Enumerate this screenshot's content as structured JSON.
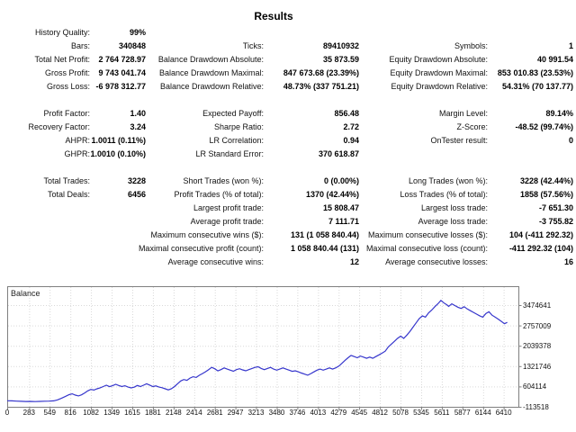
{
  "title": "Results",
  "colors": {
    "line": "#3636cc",
    "grid": "#d9d9d9",
    "plot_border": "#7f7f7f",
    "text": "#000000"
  },
  "stats_sections": [
    {
      "rows": [
        [
          "History Quality:",
          "99%",
          "",
          "",
          "",
          ""
        ],
        [
          "Bars:",
          "340848",
          "Ticks:",
          "89410932",
          "Symbols:",
          "1"
        ],
        [
          "Total Net Profit:",
          "2 764 728.97",
          "Balance Drawdown Absolute:",
          "35 873.59",
          "Equity Drawdown Absolute:",
          "40 991.54"
        ],
        [
          "Gross Profit:",
          "9 743 041.74",
          "Balance Drawdown Maximal:",
          "847 673.68 (23.39%)",
          "Equity Drawdown Maximal:",
          "853 010.83 (23.53%)"
        ],
        [
          "Gross Loss:",
          "-6 978 312.77",
          "Balance Drawdown Relative:",
          "48.73% (337 751.21)",
          "Equity Drawdown Relative:",
          "54.31% (70 137.77)"
        ]
      ]
    },
    {
      "rows": [
        [
          "Profit Factor:",
          "1.40",
          "Expected Payoff:",
          "856.48",
          "Margin Level:",
          "89.14%"
        ],
        [
          "Recovery Factor:",
          "3.24",
          "Sharpe Ratio:",
          "2.72",
          "Z-Score:",
          "-48.52 (99.74%)"
        ],
        [
          "AHPR:",
          "1.0011 (0.11%)",
          "LR Correlation:",
          "0.94",
          "OnTester result:",
          "0"
        ],
        [
          "GHPR:",
          "1.0010 (0.10%)",
          "LR Standard Error:",
          "370 618.87",
          "",
          ""
        ]
      ]
    },
    {
      "rows": [
        [
          "Total Trades:",
          "3228",
          "Short Trades (won %):",
          "0 (0.00%)",
          "Long Trades (won %):",
          "3228 (42.44%)"
        ],
        [
          "Total Deals:",
          "6456",
          "Profit Trades (% of total):",
          "1370 (42.44%)",
          "Loss Trades (% of total):",
          "1858 (57.56%)"
        ],
        [
          "",
          "",
          "Largest profit trade:",
          "15 808.47",
          "Largest loss trade:",
          "-7 651.30"
        ],
        [
          "",
          "",
          "Average profit trade:",
          "7 111.71",
          "Average loss trade:",
          "-3 755.82"
        ],
        [
          "",
          "",
          "Maximum consecutive wins ($):",
          "131 (1 058 840.44)",
          "Maximum consecutive losses ($):",
          "104 (-411 292.32)"
        ],
        [
          "",
          "",
          "Maximal consecutive profit (count):",
          "1 058 840.44 (131)",
          "Maximal consecutive loss (count):",
          "-411 292.32 (104)"
        ],
        [
          "",
          "",
          "Average consecutive wins:",
          "12",
          "Average consecutive losses:",
          "16"
        ]
      ]
    }
  ],
  "chart_data": {
    "type": "line",
    "title": "Balance",
    "legend_position": "top-left",
    "grid": true,
    "xlabel": "",
    "ylabel": "",
    "xlim": [
      0,
      6600
    ],
    "ylim": [
      -113518,
      4141000
    ],
    "x_ticks": [
      0,
      283,
      549,
      816,
      1082,
      1349,
      1615,
      1881,
      2148,
      2414,
      2681,
      2947,
      3213,
      3480,
      3746,
      4013,
      4279,
      4545,
      4812,
      5078,
      5345,
      5611,
      5877,
      6144,
      6410
    ],
    "y_ticks": [
      3474641,
      2757009,
      2039378,
      1321746,
      604114,
      -113518
    ],
    "series": [
      {
        "name": "Balance",
        "points": [
          [
            0,
            100000
          ],
          [
            60,
            96000
          ],
          [
            120,
            88000
          ],
          [
            180,
            80000
          ],
          [
            240,
            74000
          ],
          [
            300,
            78000
          ],
          [
            360,
            72000
          ],
          [
            420,
            76000
          ],
          [
            480,
            82000
          ],
          [
            540,
            86000
          ],
          [
            600,
            95000
          ],
          [
            650,
            130000
          ],
          [
            700,
            185000
          ],
          [
            750,
            250000
          ],
          [
            800,
            315000
          ],
          [
            840,
            345000
          ],
          [
            880,
            300000
          ],
          [
            920,
            272000
          ],
          [
            960,
            310000
          ],
          [
            1000,
            375000
          ],
          [
            1040,
            450000
          ],
          [
            1080,
            500000
          ],
          [
            1120,
            478000
          ],
          [
            1160,
            520000
          ],
          [
            1200,
            555000
          ],
          [
            1240,
            600000
          ],
          [
            1280,
            648000
          ],
          [
            1320,
            598000
          ],
          [
            1360,
            628000
          ],
          [
            1400,
            680000
          ],
          [
            1440,
            640000
          ],
          [
            1480,
            602000
          ],
          [
            1520,
            630000
          ],
          [
            1560,
            582000
          ],
          [
            1600,
            552000
          ],
          [
            1640,
            580000
          ],
          [
            1680,
            640000
          ],
          [
            1720,
            602000
          ],
          [
            1760,
            648000
          ],
          [
            1800,
            700000
          ],
          [
            1840,
            652000
          ],
          [
            1880,
            602000
          ],
          [
            1920,
            622000
          ],
          [
            1960,
            582000
          ],
          [
            2000,
            560000
          ],
          [
            2040,
            522000
          ],
          [
            2080,
            482000
          ],
          [
            2120,
            520000
          ],
          [
            2160,
            600000
          ],
          [
            2200,
            700000
          ],
          [
            2240,
            798000
          ],
          [
            2280,
            848000
          ],
          [
            2320,
            820000
          ],
          [
            2360,
            898000
          ],
          [
            2400,
            948000
          ],
          [
            2440,
            920000
          ],
          [
            2480,
            998000
          ],
          [
            2520,
            1058000
          ],
          [
            2560,
            1120000
          ],
          [
            2600,
            1198000
          ],
          [
            2640,
            1278000
          ],
          [
            2680,
            1228000
          ],
          [
            2720,
            1152000
          ],
          [
            2760,
            1198000
          ],
          [
            2800,
            1258000
          ],
          [
            2840,
            1218000
          ],
          [
            2880,
            1178000
          ],
          [
            2920,
            1140000
          ],
          [
            2960,
            1198000
          ],
          [
            3000,
            1228000
          ],
          [
            3040,
            1188000
          ],
          [
            3080,
            1158000
          ],
          [
            3120,
            1198000
          ],
          [
            3160,
            1238000
          ],
          [
            3200,
            1278000
          ],
          [
            3240,
            1298000
          ],
          [
            3280,
            1238000
          ],
          [
            3320,
            1198000
          ],
          [
            3360,
            1238000
          ],
          [
            3400,
            1278000
          ],
          [
            3440,
            1218000
          ],
          [
            3480,
            1178000
          ],
          [
            3520,
            1218000
          ],
          [
            3560,
            1258000
          ],
          [
            3600,
            1218000
          ],
          [
            3640,
            1178000
          ],
          [
            3680,
            1138000
          ],
          [
            3720,
            1158000
          ],
          [
            3760,
            1118000
          ],
          [
            3800,
            1078000
          ],
          [
            3840,
            1038000
          ],
          [
            3880,
            1000000
          ],
          [
            3920,
            1058000
          ],
          [
            3960,
            1118000
          ],
          [
            4000,
            1178000
          ],
          [
            4040,
            1218000
          ],
          [
            4080,
            1178000
          ],
          [
            4120,
            1218000
          ],
          [
            4160,
            1258000
          ],
          [
            4200,
            1218000
          ],
          [
            4240,
            1258000
          ],
          [
            4280,
            1318000
          ],
          [
            4320,
            1418000
          ],
          [
            4360,
            1518000
          ],
          [
            4400,
            1618000
          ],
          [
            4440,
            1698000
          ],
          [
            4480,
            1658000
          ],
          [
            4520,
            1618000
          ],
          [
            4560,
            1678000
          ],
          [
            4600,
            1638000
          ],
          [
            4640,
            1598000
          ],
          [
            4680,
            1638000
          ],
          [
            4720,
            1598000
          ],
          [
            4760,
            1658000
          ],
          [
            4800,
            1718000
          ],
          [
            4840,
            1778000
          ],
          [
            4880,
            1848000
          ],
          [
            4920,
            1998000
          ],
          [
            4960,
            2098000
          ],
          [
            5000,
            2198000
          ],
          [
            5040,
            2298000
          ],
          [
            5080,
            2378000
          ],
          [
            5120,
            2298000
          ],
          [
            5160,
            2418000
          ],
          [
            5200,
            2548000
          ],
          [
            5240,
            2698000
          ],
          [
            5280,
            2848000
          ],
          [
            5320,
            2998000
          ],
          [
            5360,
            3098000
          ],
          [
            5400,
            3048000
          ],
          [
            5440,
            3198000
          ],
          [
            5480,
            3298000
          ],
          [
            5520,
            3418000
          ],
          [
            5560,
            3518000
          ],
          [
            5600,
            3638000
          ],
          [
            5640,
            3548000
          ],
          [
            5680,
            3478000
          ],
          [
            5700,
            3428000
          ],
          [
            5740,
            3518000
          ],
          [
            5780,
            3458000
          ],
          [
            5820,
            3398000
          ],
          [
            5860,
            3358000
          ],
          [
            5900,
            3418000
          ],
          [
            5940,
            3338000
          ],
          [
            5980,
            3278000
          ],
          [
            6020,
            3218000
          ],
          [
            6060,
            3158000
          ],
          [
            6100,
            3098000
          ],
          [
            6140,
            3048000
          ],
          [
            6180,
            3178000
          ],
          [
            6220,
            3238000
          ],
          [
            6260,
            3118000
          ],
          [
            6300,
            3048000
          ],
          [
            6340,
            2978000
          ],
          [
            6380,
            2898000
          ],
          [
            6420,
            2818000
          ],
          [
            6456,
            2864729
          ]
        ]
      }
    ]
  }
}
